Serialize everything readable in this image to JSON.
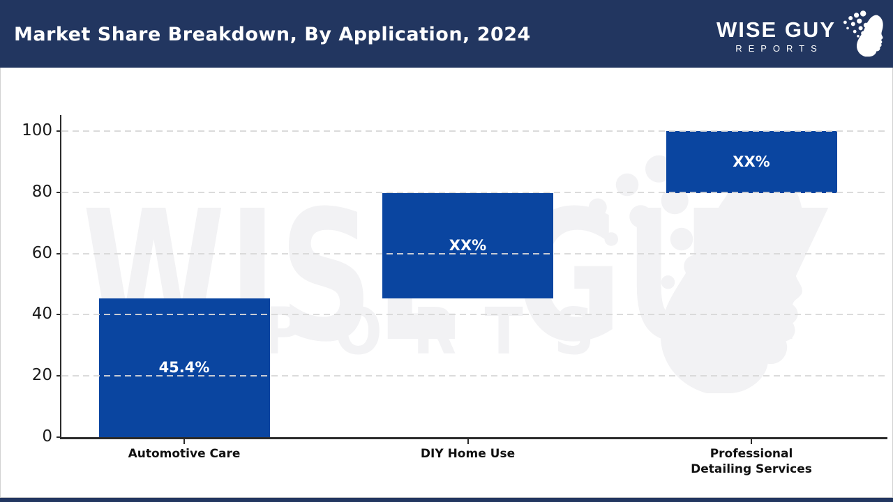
{
  "header": {
    "title": "Market Share Breakdown, By Application, 2024",
    "logo": {
      "line1": "WISE GUY",
      "line2": "REPORTS"
    }
  },
  "watermark": {
    "line1": "WISE GUY",
    "line2": "REPORTS"
  },
  "colors": {
    "header_bg": "#223660",
    "footer_bg": "#223660",
    "bar_fill": "#0a45a0",
    "bar_label_text": "#ffffff",
    "grid": "#d8d8d8",
    "axis": "#2b2b2b",
    "tick_text": "#1a1a1a",
    "category_text": "#111111",
    "watermark_gray": "#f2f2f4",
    "background": "#ffffff"
  },
  "chart_data": {
    "type": "bar",
    "subtype": "floating-segment (waterfall-style) percentage bars",
    "title": "Market Share Breakdown, By Application, 2024",
    "categories": [
      "Automotive Care",
      "DIY Home Use",
      "Professional Detailing Services"
    ],
    "segments": [
      {
        "category": "Automotive Care",
        "start": 0,
        "end": 45.4,
        "value_label": "45.4%"
      },
      {
        "category": "DIY Home Use",
        "start": 45.4,
        "end": 79.8,
        "value_label": "XX%"
      },
      {
        "category": "Professional Detailing Services",
        "start": 79.8,
        "end": 100,
        "value_label": "XX%"
      }
    ],
    "xlabel": "",
    "ylabel": "",
    "ylim": [
      0,
      100
    ],
    "yticks": [
      0,
      20,
      40,
      60,
      80,
      100
    ],
    "grid": "horizontal dashed gridlines, drawn over bars",
    "legend": "none"
  }
}
